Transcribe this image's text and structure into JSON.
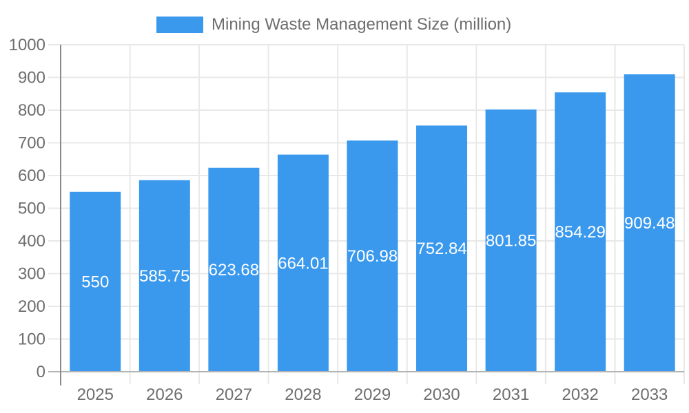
{
  "chart_data": {
    "type": "bar",
    "title": "",
    "legend": "Mining Waste Management Size (million)",
    "categories": [
      "2025",
      "2026",
      "2027",
      "2028",
      "2029",
      "2030",
      "2031",
      "2032",
      "2033"
    ],
    "values": [
      550,
      585.75,
      623.68,
      664.01,
      706.98,
      752.84,
      801.85,
      854.29,
      909.48
    ],
    "value_labels": [
      "550",
      "585.75",
      "623.68",
      "664.01",
      "706.98",
      "752.84",
      "801.85",
      "854.29",
      "909.48"
    ],
    "xlabel": "",
    "ylabel": "",
    "ylim": [
      0,
      1000
    ],
    "ytick_step": 100,
    "ytick_labels": [
      "0",
      "100",
      "200",
      "300",
      "400",
      "500",
      "600",
      "700",
      "800",
      "900",
      "1000"
    ],
    "grid": true,
    "legend_position": "top-center",
    "colors": {
      "bar": "#3A99ED",
      "value_label": "#ffffff",
      "tick_label": "#6e6e6e",
      "grid": "#e8e8e8",
      "y_axis": "#8a8a8a",
      "x_axis": "#b3b3b3",
      "background": "#ffffff"
    }
  }
}
